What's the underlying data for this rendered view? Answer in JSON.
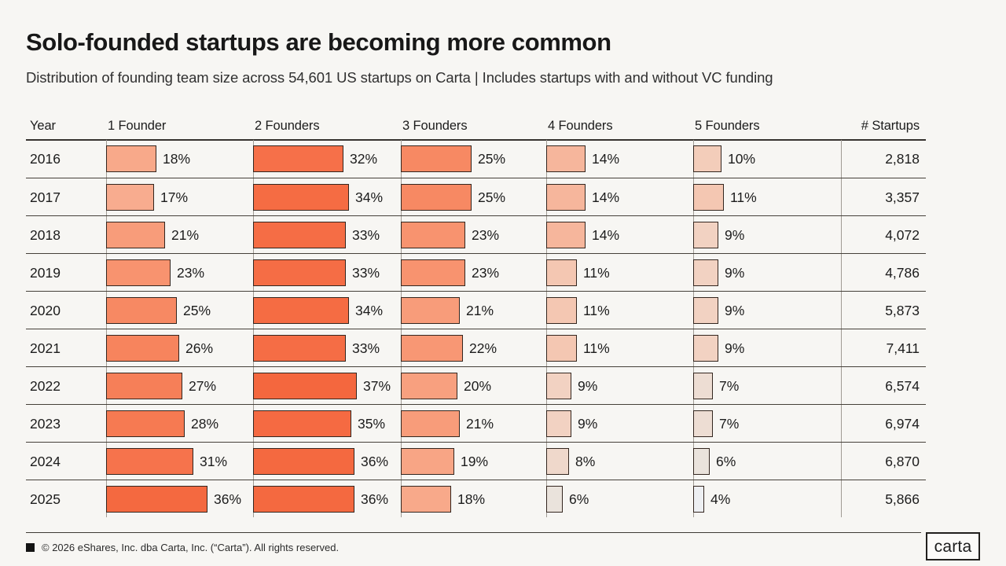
{
  "page": {
    "title": "Solo-founded startups are becoming more common",
    "subtitle": "Distribution of founding team size across 54,601 US startups on Carta | Includes startups with and without VC funding",
    "background_color": "#f7f6f3"
  },
  "table": {
    "columns": [
      "Year",
      "1 Founder",
      "2 Founders",
      "3 Founders",
      "4 Founders",
      "5 Founders",
      "# Startups"
    ]
  },
  "chart_data": {
    "type": "bar",
    "orientation": "horizontal",
    "title": "Solo-founded startups are becoming more common",
    "subtitle": "Distribution of founding team size across 54,601 US startups on Carta | Includes startups with and without VC funding",
    "categories": [
      "2016",
      "2017",
      "2018",
      "2019",
      "2020",
      "2021",
      "2022",
      "2023",
      "2024",
      "2025"
    ],
    "series": [
      {
        "name": "1 Founder",
        "values": [
          18,
          17,
          21,
          23,
          25,
          26,
          27,
          28,
          31,
          36
        ]
      },
      {
        "name": "2 Founders",
        "values": [
          32,
          34,
          33,
          33,
          34,
          33,
          37,
          35,
          36,
          36
        ]
      },
      {
        "name": "3 Founders",
        "values": [
          25,
          25,
          23,
          23,
          21,
          22,
          20,
          21,
          19,
          18
        ]
      },
      {
        "name": "4 Founders",
        "values": [
          14,
          14,
          14,
          11,
          11,
          11,
          9,
          9,
          8,
          6
        ]
      },
      {
        "name": "5 Founders",
        "values": [
          10,
          11,
          9,
          9,
          9,
          9,
          7,
          7,
          6,
          4
        ]
      }
    ],
    "startups_per_year": [
      2818,
      3357,
      4072,
      4786,
      5873,
      7411,
      6574,
      6974,
      6870,
      5866
    ],
    "unit": "%",
    "value_labels_shown": true,
    "grid": "row-separators-and-column-dividers",
    "legend": "none",
    "bar_border_color": "#33261f",
    "color_scale_stops": [
      {
        "value": 4,
        "color": "#EDEFF2"
      },
      {
        "value": 6,
        "color": "#EAE3DC"
      },
      {
        "value": 9,
        "color": "#F2D2C2"
      },
      {
        "value": 11,
        "color": "#F4C7B2"
      },
      {
        "value": 14,
        "color": "#F6B69C"
      },
      {
        "value": 18,
        "color": "#F8A98A"
      },
      {
        "value": 21,
        "color": "#F89C7A"
      },
      {
        "value": 25,
        "color": "#F78963"
      },
      {
        "value": 28,
        "color": "#F67A52"
      },
      {
        "value": 31,
        "color": "#F6734C"
      },
      {
        "value": 33,
        "color": "#F56D45"
      },
      {
        "value": 37,
        "color": "#F4673E"
      }
    ]
  },
  "footer": {
    "copyright": "© 2026 eShares, Inc. dba Carta, Inc. (“Carta”). All rights reserved.",
    "logo_text": "carta"
  }
}
